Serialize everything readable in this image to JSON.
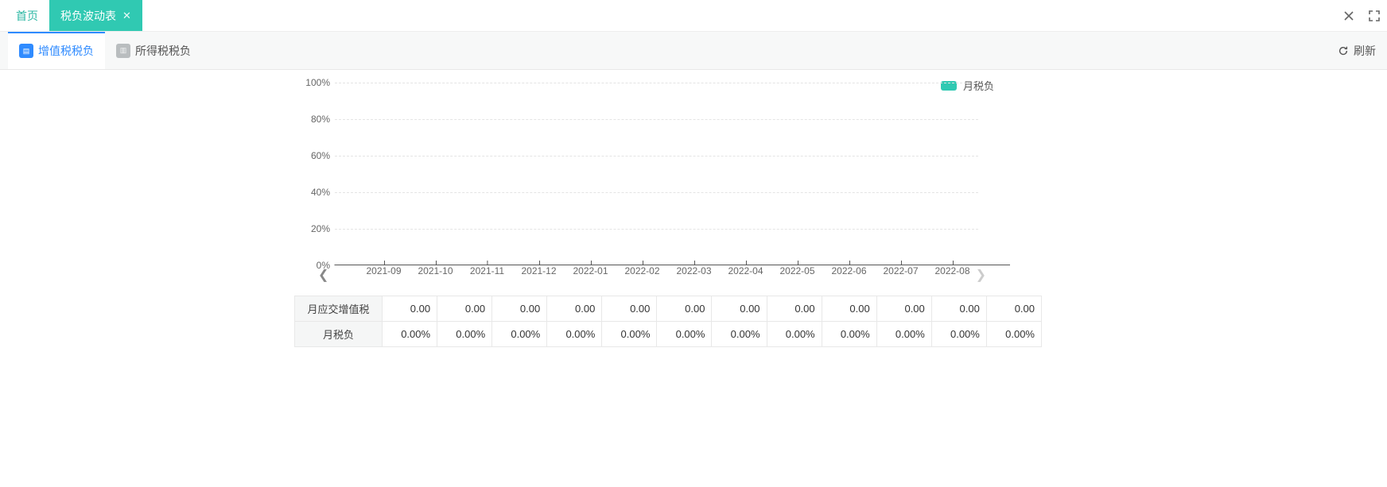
{
  "top": {
    "home_label": "首页",
    "tab_label": "税负波动表"
  },
  "sub_tabs": {
    "vat_label": "增值税税负",
    "income_label": "所得税税负",
    "refresh_label": "刷新"
  },
  "chart": {
    "legend_label": "月税负",
    "legend_color": "#30c9b2",
    "y_ticks": [
      "0%",
      "20%",
      "40%",
      "60%",
      "80%",
      "100%"
    ],
    "y_positions_pct": [
      0,
      20,
      40,
      60,
      80,
      100
    ],
    "x_labels": [
      "2021-09",
      "2021-10",
      "2021-11",
      "2021-12",
      "2022-01",
      "2022-02",
      "2022-03",
      "2022-04",
      "2022-05",
      "2022-06",
      "2022-07",
      "2022-08"
    ],
    "grid_color": "#e4e4e4",
    "axis_color": "#555555"
  },
  "table": {
    "row1_label": "月应交增值税",
    "row2_label": "月税负",
    "row1_values": [
      "0.00",
      "0.00",
      "0.00",
      "0.00",
      "0.00",
      "0.00",
      "0.00",
      "0.00",
      "0.00",
      "0.00",
      "0.00",
      "0.00"
    ],
    "row2_values": [
      "0.00%",
      "0.00%",
      "0.00%",
      "0.00%",
      "0.00%",
      "0.00%",
      "0.00%",
      "0.00%",
      "0.00%",
      "0.00%",
      "0.00%",
      "0.00%"
    ]
  }
}
